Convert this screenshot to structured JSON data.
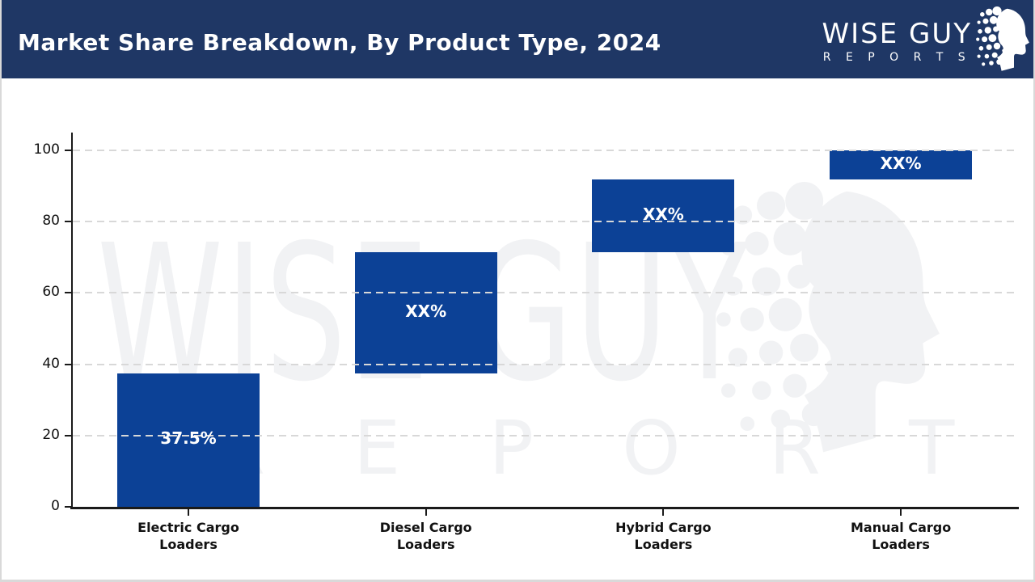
{
  "header": {
    "title": "Market Share Breakdown, By Product Type, 2024",
    "brand": {
      "line1": "WISE GUY",
      "line2": "R E P O R T S"
    },
    "bg_color": "#1f3765"
  },
  "watermark": {
    "line1": "WISE GUY",
    "line2": "R E P O R T S"
  },
  "colors": {
    "header_bg": "#1f3765",
    "bar": "#0c4196",
    "bar_label": "#ffffff",
    "grid": "#d8d8d8",
    "axis": "#1a1a1a",
    "watermark": "#f1f2f4",
    "page_border": "#d9d9d9"
  },
  "chart_data": {
    "type": "bar",
    "subtype": "waterfall",
    "title": "Market Share Breakdown, By Product Type, 2024",
    "categories": [
      "Electric Cargo\nLoaders",
      "Diesel Cargo\nLoaders",
      "Hybrid Cargo\nLoaders",
      "Manual Cargo\nLoaders"
    ],
    "segments": [
      {
        "category": "Electric Cargo Loaders",
        "start": 0,
        "end": 37.5,
        "value": 37.5,
        "label": "37.5%"
      },
      {
        "category": "Diesel Cargo Loaders",
        "start": 37.5,
        "end": 71.4,
        "value": 33.9,
        "label": "XX%"
      },
      {
        "category": "Hybrid Cargo Loaders",
        "start": 71.4,
        "end": 91.8,
        "value": 20.4,
        "label": "XX%"
      },
      {
        "category": "Manual Cargo Loaders",
        "start": 91.8,
        "end": 100,
        "value": 8.2,
        "label": "XX%"
      }
    ],
    "xlabel": "",
    "ylabel": "",
    "yticks": [
      0,
      20,
      40,
      60,
      80,
      100
    ],
    "ylim": [
      0,
      105
    ],
    "grid": "horizontal dashed gridlines drawn above bars",
    "legend": "none",
    "bar_color": "#0c4196"
  }
}
